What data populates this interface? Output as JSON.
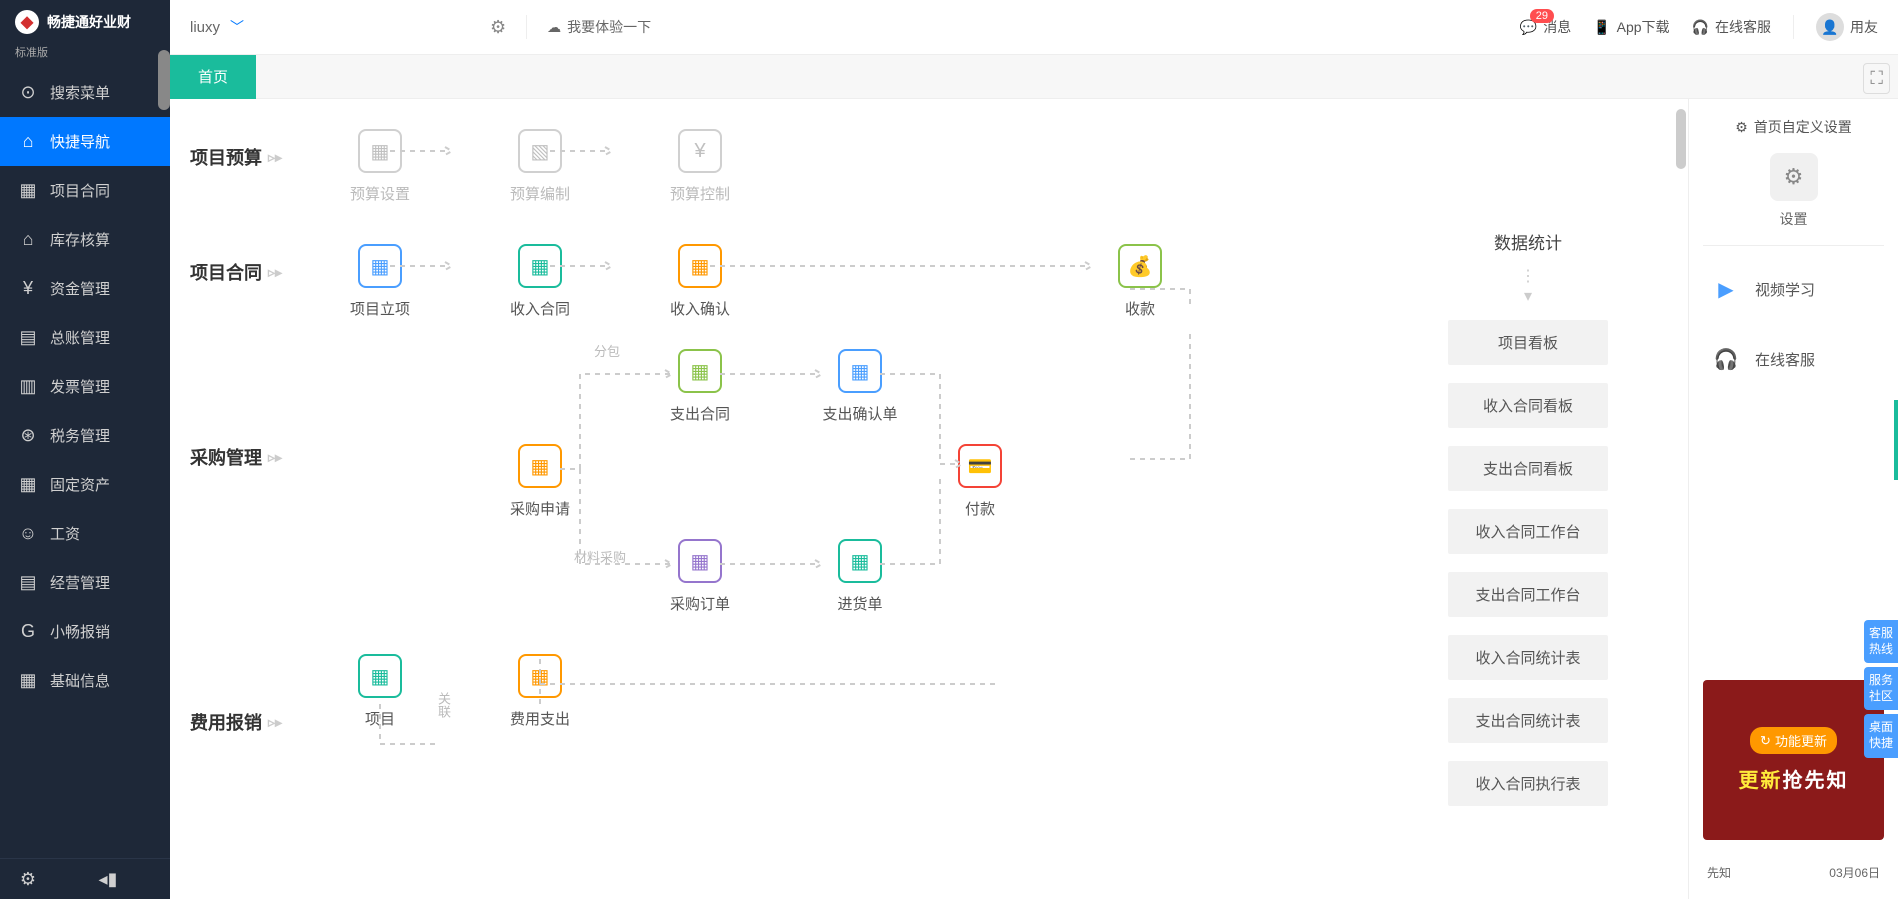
{
  "app": {
    "logo_text": "畅捷通好业财",
    "edition": "标准版"
  },
  "sidebar": {
    "items": [
      {
        "icon": "⊙",
        "label": "搜索菜单"
      },
      {
        "icon": "⌂",
        "label": "快捷导航",
        "active": true
      },
      {
        "icon": "▦",
        "label": "项目合同"
      },
      {
        "icon": "⌂",
        "label": "库存核算"
      },
      {
        "icon": "¥",
        "label": "资金管理"
      },
      {
        "icon": "▤",
        "label": "总账管理"
      },
      {
        "icon": "▥",
        "label": "发票管理"
      },
      {
        "icon": "⊛",
        "label": "税务管理"
      },
      {
        "icon": "▦",
        "label": "固定资产"
      },
      {
        "icon": "☺",
        "label": "工资"
      },
      {
        "icon": "▤",
        "label": "经营管理"
      },
      {
        "icon": "G",
        "label": "小畅报销"
      },
      {
        "icon": "▦",
        "label": "基础信息"
      }
    ]
  },
  "topbar": {
    "user": "liuxy",
    "experience": "我要体验一下",
    "msg": "消息",
    "msg_count": "29",
    "app_download": "App下载",
    "service": "在线客服",
    "username": "用友"
  },
  "tab": {
    "home": "首页"
  },
  "workflow": {
    "sections": {
      "budget": {
        "title": "项目预算",
        "nodes": [
          {
            "label": "预算设置"
          },
          {
            "label": "预算编制"
          },
          {
            "label": "预算控制"
          }
        ]
      },
      "contract": {
        "title": "项目合同",
        "nodes": [
          {
            "label": "项目立项"
          },
          {
            "label": "收入合同"
          },
          {
            "label": "收入确认"
          },
          {
            "label": "收款"
          }
        ]
      },
      "purchase": {
        "title": "采购管理",
        "label_fenbao": "分包",
        "label_cailiao": "材料采购",
        "nodes": {
          "apply": "采购申请",
          "expense_contract": "支出合同",
          "expense_confirm": "支出确认单",
          "payment": "付款",
          "order": "采购订单",
          "receipt": "进货单"
        }
      },
      "expense": {
        "title": "费用报销",
        "label_guanlian": "关联",
        "nodes": {
          "project": "项目",
          "expense": "费用支出"
        }
      }
    },
    "stats": {
      "title": "数据统计",
      "items": [
        "项目看板",
        "收入合同看板",
        "支出合同看板",
        "收入合同工作台",
        "支出合同工作台",
        "收入合同统计表",
        "支出合同统计表",
        "收入合同执行表"
      ]
    }
  },
  "right_panel": {
    "title": "首页自定义设置",
    "setting": "设置",
    "video": "视频学习",
    "service": "在线客服",
    "promo_tag": "功能更新",
    "promo_big1": "更新",
    "promo_big2": "抢先知",
    "promo_left": "先知",
    "promo_date": "03月06日"
  },
  "float_tabs": [
    "客服热线",
    "服务社区",
    "桌面快捷"
  ]
}
